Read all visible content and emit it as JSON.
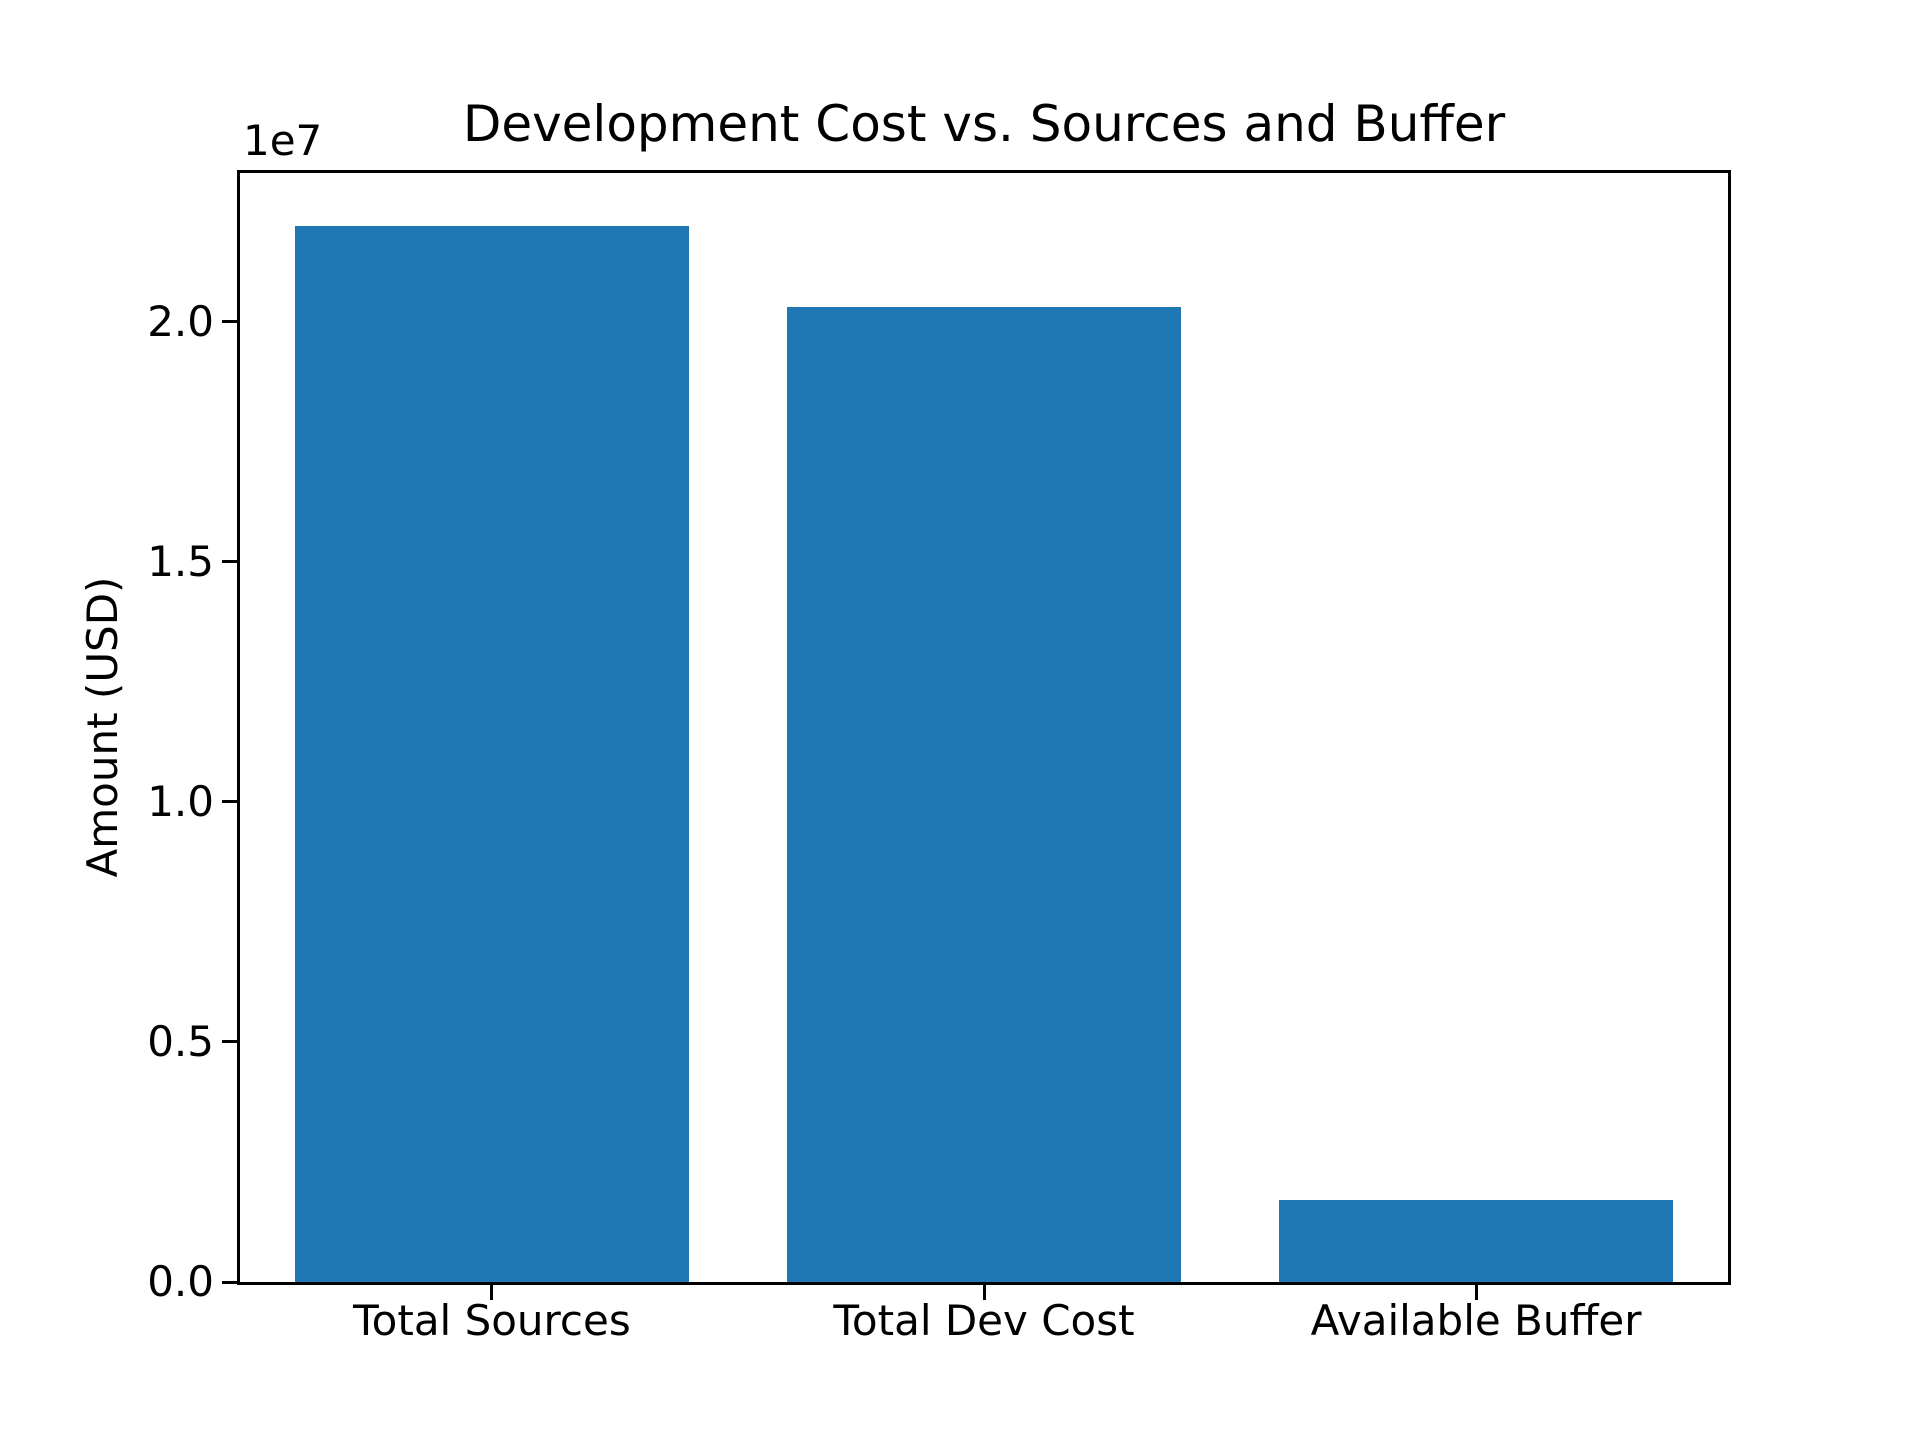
{
  "chart_data": {
    "type": "bar",
    "title": "Development Cost vs. Sources and Buffer",
    "ylabel": "Amount (USD)",
    "xlabel": "",
    "offset_text": "1e7",
    "categories": [
      "Total Sources",
      "Total Dev Cost",
      "Available Buffer"
    ],
    "values": [
      22000000,
      20300000,
      1700000
    ],
    "bar_color": "#1f77b4",
    "axis_color": "#000000",
    "background_color": "#ffffff",
    "ylim": [
      0,
      23100000
    ],
    "yticks": {
      "values": [
        0,
        5000000,
        10000000,
        15000000,
        20000000
      ],
      "labels": [
        "0.0",
        "0.5",
        "1.0",
        "1.5",
        "2.0"
      ]
    },
    "grid": false,
    "legend": false,
    "bar_width_fraction": 0.8
  }
}
